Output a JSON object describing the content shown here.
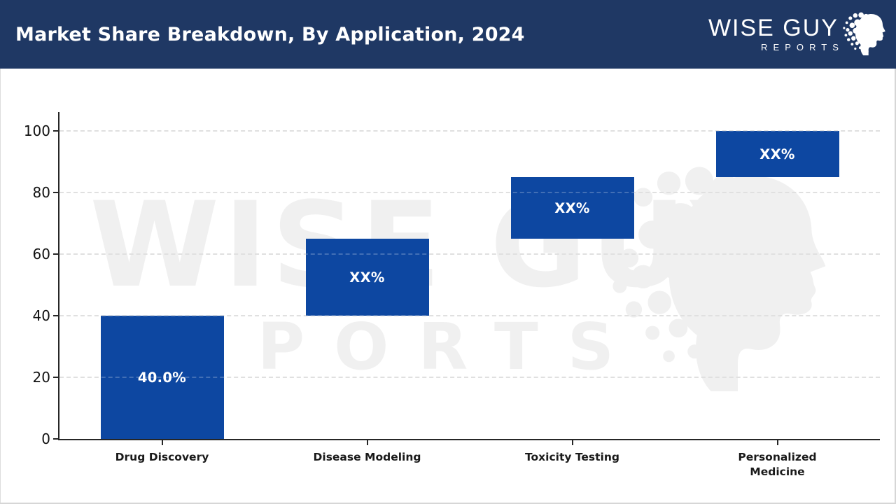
{
  "header": {
    "title": "Market Share Breakdown, By Application, 2024",
    "logo": {
      "line1": "WISE GUY",
      "line2": "REPORTS"
    }
  },
  "watermark": {
    "line1": "WISE GUY",
    "line2": "REPORTS"
  },
  "chart_data": {
    "type": "bar",
    "subtype": "floating-waterfall-segments",
    "title": "Market Share Breakdown, By Application, 2024",
    "categories": [
      "Drug Discovery",
      "Disease Modeling",
      "Toxicity Testing",
      "Personalized Medicine"
    ],
    "series": [
      {
        "name": "Market Share",
        "segments": [
          {
            "category": "Drug Discovery",
            "start": 0,
            "end": 40,
            "label": "40.0%"
          },
          {
            "category": "Disease Modeling",
            "start": 40,
            "end": 65,
            "label": "XX%"
          },
          {
            "category": "Toxicity Testing",
            "start": 65,
            "end": 85,
            "label": "XX%"
          },
          {
            "category": "Personalized Medicine",
            "start": 85,
            "end": 100,
            "label": "XX%"
          }
        ]
      }
    ],
    "yticks": [
      0,
      20,
      40,
      60,
      80,
      100
    ],
    "ylim": [
      0,
      106
    ],
    "xlabel": "",
    "ylabel": "",
    "grid": "horizontal-dashed",
    "legend": "none"
  },
  "colors": {
    "header_bg": "#1f3864",
    "bar": "#0d47a1",
    "grid": "#d8d8d8",
    "axis": "#262626",
    "watermark": "#f0f0f0"
  }
}
